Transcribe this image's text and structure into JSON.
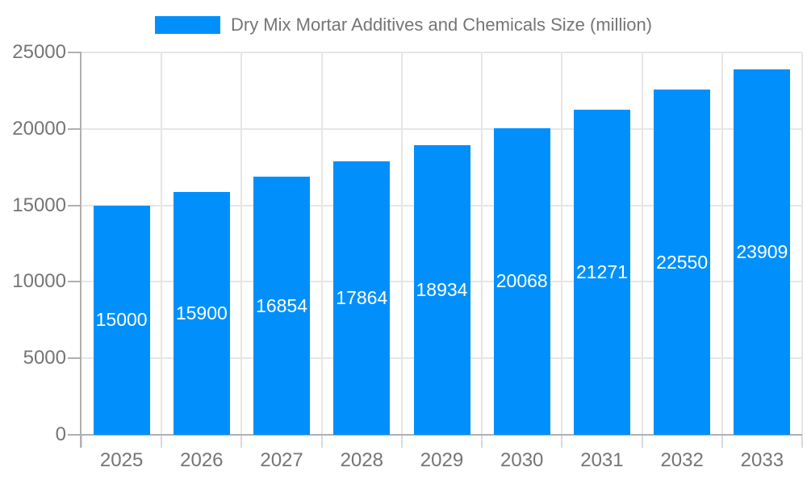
{
  "legend": {
    "label": "Dry Mix Mortar Additives and Chemicals Size (million)"
  },
  "chart_data": {
    "type": "bar",
    "title": "Dry Mix Mortar Additives and Chemicals Size (million)",
    "categories": [
      "2025",
      "2026",
      "2027",
      "2028",
      "2029",
      "2030",
      "2031",
      "2032",
      "2033"
    ],
    "series": [
      {
        "name": "Dry Mix Mortar Additives and Chemicals Size (million)",
        "values": [
          15000,
          15900,
          16854,
          17864,
          18934,
          20068,
          21271,
          22550,
          23909
        ]
      }
    ],
    "data_labels": [
      "15000",
      "15900",
      "16854",
      "17864",
      "18934",
      "20068",
      "21271",
      "22550",
      "23909"
    ],
    "xlabel": "",
    "ylabel": "",
    "ylim": [
      0,
      25000
    ],
    "yticks": [
      0,
      5000,
      10000,
      15000,
      20000,
      25000
    ],
    "grid": "on",
    "legend_position": "top",
    "colors": {
      "bar": "#0190FB",
      "bar_label_text": "#ffffff",
      "axis_text": "#757575",
      "gridline": "#e6e6e6",
      "axis_line": "#b0b0b0",
      "x_tick": "#d9d9d9"
    }
  }
}
